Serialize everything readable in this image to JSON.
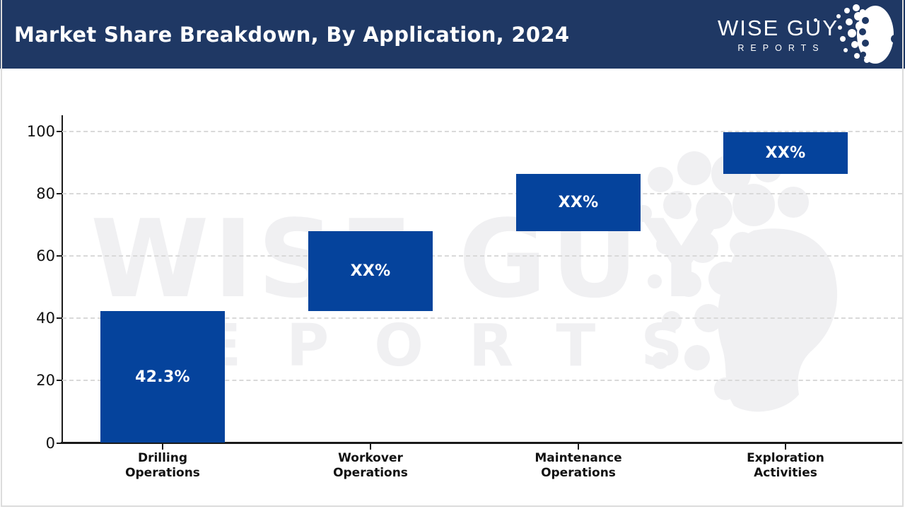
{
  "header": {
    "title": "Market Share Breakdown, By Application, 2024"
  },
  "logo": {
    "name": "WISE GUY",
    "sub": "REPORTS"
  },
  "watermark": {
    "name": "WISE GUY",
    "sub": "REPORTS"
  },
  "colors": {
    "header_bg": "#1f3864",
    "bar_blue": "#05439c",
    "grid_gray": "#d9d9d9",
    "watermark_gray": "#f0f0f2"
  },
  "chart_data": {
    "type": "bar",
    "subtype": "waterfall",
    "title": "Market Share Breakdown, By Application, 2024",
    "xlabel": "",
    "ylabel": "",
    "ylim": [
      0,
      105
    ],
    "y_ticks": [
      0,
      20,
      40,
      60,
      80,
      100
    ],
    "grid": "horizontal-dashed",
    "legend": "none",
    "categories": [
      "Drilling\nOperations",
      "Workover\nOperations",
      "Maintenance\nOperations",
      "Exploration\nActivities"
    ],
    "segments": [
      {
        "category": "Drilling Operations",
        "start": 0,
        "end": 42.3,
        "label": "42.3%"
      },
      {
        "category": "Workover Operations",
        "start": 42.3,
        "end": 68.0,
        "label": "XX%"
      },
      {
        "category": "Maintenance Operations",
        "start": 68.0,
        "end": 86.4,
        "label": "XX%"
      },
      {
        "category": "Exploration Activities",
        "start": 86.4,
        "end": 99.8,
        "label": "XX%"
      }
    ]
  }
}
